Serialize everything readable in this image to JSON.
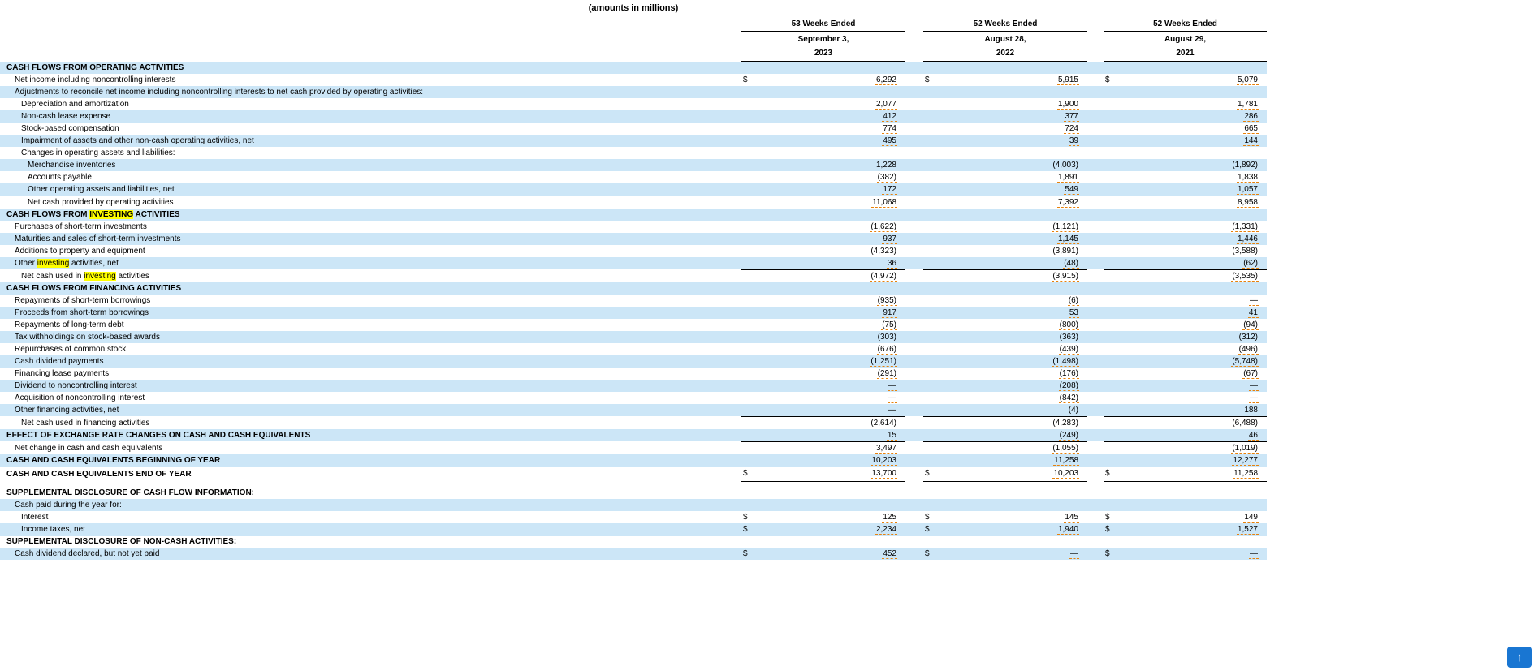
{
  "page": {
    "title": "(amounts in millions)"
  },
  "columns": [
    {
      "period": "53 Weeks Ended",
      "date1": "September 3,",
      "date2": "2023"
    },
    {
      "period": "52 Weeks Ended",
      "date1": "August 28,",
      "date2": "2022"
    },
    {
      "period": "52 Weeks Ended",
      "date1": "August 29,",
      "date2": "2021"
    }
  ],
  "rows": [
    {
      "label": "CASH FLOWS FROM OPERATING ACTIVITIES",
      "ind": 0,
      "bold": true,
      "shaded": true
    },
    {
      "label": "Net income including noncontrolling interests",
      "ind": 1,
      "usd": true,
      "vals": [
        "6,292",
        "5,915",
        "5,079"
      ]
    },
    {
      "label": "Adjustments to reconcile net income including noncontrolling interests to net cash provided by operating activities:",
      "ind": 1,
      "shaded": true
    },
    {
      "label": "Depreciation and amortization",
      "ind": 2,
      "vals": [
        "2,077",
        "1,900",
        "1,781"
      ]
    },
    {
      "label": "Non-cash lease expense",
      "ind": 2,
      "shaded": true,
      "vals": [
        "412",
        "377",
        "286"
      ]
    },
    {
      "label": "Stock-based compensation",
      "ind": 2,
      "vals": [
        "774",
        "724",
        "665"
      ]
    },
    {
      "label": "Impairment of assets and other non-cash operating activities, net",
      "ind": 2,
      "shaded": true,
      "vals": [
        "495",
        "39",
        "144"
      ]
    },
    {
      "label": "Changes in operating assets and liabilities:",
      "ind": 2
    },
    {
      "label": "Merchandise inventories",
      "ind": 3,
      "shaded": true,
      "vals": [
        "1,228",
        "(4,003)",
        "(1,892)"
      ]
    },
    {
      "label": "Accounts payable",
      "ind": 3,
      "vals": [
        "(382)",
        "1,891",
        "1,838"
      ]
    },
    {
      "label": "Other operating assets and liabilities, net",
      "ind": 3,
      "shaded": true,
      "vals": [
        "172",
        "549",
        "1,057"
      ]
    },
    {
      "label": "Net cash provided by operating activities",
      "ind": 3,
      "top": true,
      "vals": [
        "11,068",
        "7,392",
        "8,958"
      ]
    },
    {
      "parts": [
        [
          "CASH FLOWS FROM ",
          false
        ],
        [
          "INVESTING",
          true
        ],
        [
          " ACTIVITIES",
          false
        ]
      ],
      "ind": 0,
      "bold": true,
      "shaded": true
    },
    {
      "label": "Purchases of short-term investments",
      "ind": 1,
      "vals": [
        "(1,622)",
        "(1,121)",
        "(1,331)"
      ]
    },
    {
      "label": "Maturities and sales of short-term investments",
      "ind": 1,
      "shaded": true,
      "vals": [
        "937",
        "1,145",
        "1,446"
      ]
    },
    {
      "label": "Additions to property and equipment",
      "ind": 1,
      "vals": [
        "(4,323)",
        "(3,891)",
        "(3,588)"
      ]
    },
    {
      "parts": [
        [
          "Other ",
          false
        ],
        [
          "investing",
          true
        ],
        [
          " activities, net",
          false
        ]
      ],
      "ind": 1,
      "shaded": true,
      "vals": [
        "36",
        "(48)",
        "(62)"
      ]
    },
    {
      "parts": [
        [
          "Net cash used in ",
          false
        ],
        [
          "investing",
          true
        ],
        [
          " activities",
          false
        ]
      ],
      "ind": 2,
      "top": true,
      "vals": [
        "(4,972)",
        "(3,915)",
        "(3,535)"
      ]
    },
    {
      "label": "CASH FLOWS FROM FINANCING ACTIVITIES",
      "ind": 0,
      "bold": true,
      "shaded": true
    },
    {
      "label": "Repayments of short-term borrowings",
      "ind": 1,
      "vals": [
        "(935)",
        "(6)",
        "—"
      ]
    },
    {
      "label": "Proceeds from short-term borrowings",
      "ind": 1,
      "shaded": true,
      "vals": [
        "917",
        "53",
        "41"
      ]
    },
    {
      "label": "Repayments of long-term debt",
      "ind": 1,
      "vals": [
        "(75)",
        "(800)",
        "(94)"
      ]
    },
    {
      "label": "Tax withholdings on stock-based awards",
      "ind": 1,
      "shaded": true,
      "vals": [
        "(303)",
        "(363)",
        "(312)"
      ]
    },
    {
      "label": "Repurchases of common stock",
      "ind": 1,
      "vals": [
        "(676)",
        "(439)",
        "(496)"
      ]
    },
    {
      "label": "Cash dividend payments",
      "ind": 1,
      "shaded": true,
      "vals": [
        "(1,251)",
        "(1,498)",
        "(5,748)"
      ]
    },
    {
      "label": "Financing lease payments",
      "ind": 1,
      "vals": [
        "(291)",
        "(176)",
        "(67)"
      ]
    },
    {
      "label": "Dividend to noncontrolling interest",
      "ind": 1,
      "shaded": true,
      "vals": [
        "—",
        "(208)",
        "—"
      ]
    },
    {
      "label": "Acquisition of noncontrolling interest",
      "ind": 1,
      "vals": [
        "—",
        "(842)",
        "—"
      ]
    },
    {
      "label": "Other financing activities, net",
      "ind": 1,
      "shaded": true,
      "vals": [
        "—",
        "(4)",
        "188"
      ]
    },
    {
      "label": "Net cash used in financing activities",
      "ind": 2,
      "top": true,
      "vals": [
        "(2,614)",
        "(4,283)",
        "(6,488)"
      ]
    },
    {
      "label": "EFFECT OF EXCHANGE RATE CHANGES ON CASH AND CASH EQUIVALENTS",
      "ind": 0,
      "bold": true,
      "shaded": true,
      "vals": [
        "15",
        "(249)",
        "46"
      ]
    },
    {
      "label": "Net change in cash and cash equivalents",
      "ind": 1,
      "top": true,
      "vals": [
        "3,497",
        "(1,055)",
        "(1,019)"
      ]
    },
    {
      "label": "CASH AND CASH EQUIVALENTS BEGINNING OF YEAR",
      "ind": 0,
      "bold": true,
      "shaded": true,
      "vals": [
        "10,203",
        "11,258",
        "12,277"
      ]
    },
    {
      "label": "CASH AND CASH EQUIVALENTS END OF YEAR",
      "ind": 0,
      "bold": true,
      "usd": true,
      "top": true,
      "dbl": true,
      "vals": [
        "13,700",
        "10,203",
        "11,258"
      ]
    },
    {
      "spacer": true
    },
    {
      "label": "SUPPLEMENTAL DISCLOSURE OF CASH FLOW INFORMATION:",
      "ind": 0,
      "bold": true
    },
    {
      "label": "Cash paid during the year for:",
      "ind": 1,
      "shaded": true
    },
    {
      "label": "Interest",
      "ind": 2,
      "usd": true,
      "vals": [
        "125",
        "145",
        "149"
      ]
    },
    {
      "label": "Income taxes, net",
      "ind": 2,
      "shaded": true,
      "usd": true,
      "vals": [
        "2,234",
        "1,940",
        "1,527"
      ]
    },
    {
      "label": "SUPPLEMENTAL DISCLOSURE OF NON-CASH ACTIVITIES:",
      "ind": 0,
      "bold": true
    },
    {
      "label": "Cash dividend declared, but not yet paid",
      "ind": 1,
      "shaded": true,
      "usd": true,
      "vals": [
        "452",
        "—",
        "—"
      ]
    }
  ],
  "scroll_button": {
    "glyph": "↑",
    "label": "scroll to top"
  },
  "colors": {
    "row_highlight": "#cce6f7",
    "fact_underline": "#e8820c",
    "term_highlight": "#ffff00",
    "button_blue": "#1976d2",
    "rule_black": "#000000"
  }
}
